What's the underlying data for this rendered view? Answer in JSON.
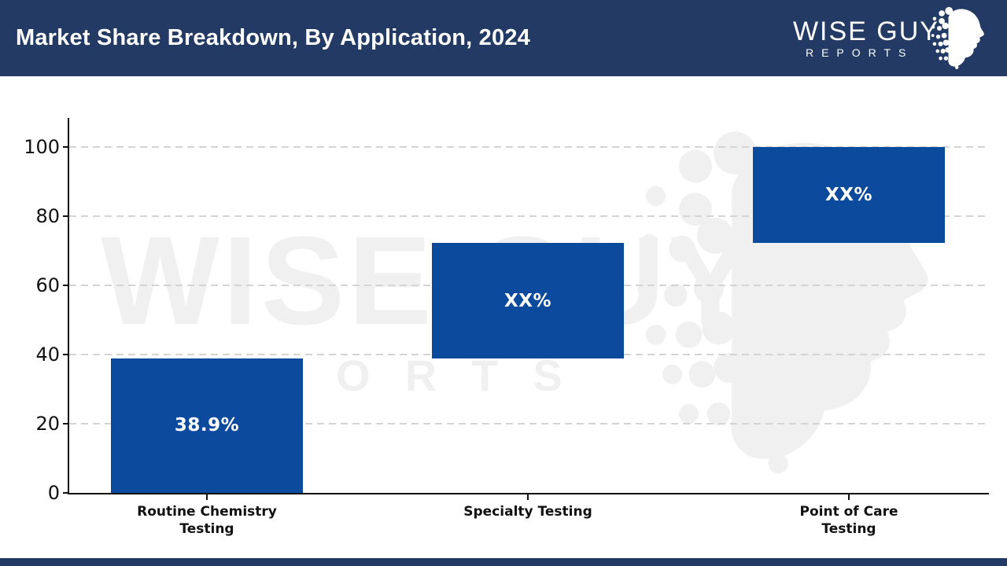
{
  "header": {
    "title": "Market Share Breakdown, By Application, 2024",
    "logo": {
      "line1": "WISE GUY",
      "line2": "REPORTS"
    }
  },
  "watermark": {
    "line1": "WISE GUY",
    "line2": "REPORTS"
  },
  "chart_data": {
    "type": "bar",
    "subtype": "waterfall",
    "title": "Market Share Breakdown, By Application, 2024",
    "categories": [
      [
        "Routine Chemistry",
        "Testing"
      ],
      [
        "Specialty Testing"
      ],
      [
        "Point of Care",
        "Testing"
      ]
    ],
    "bars": [
      {
        "start": 0,
        "end": 38.9,
        "label": "38.9%"
      },
      {
        "start": 38.9,
        "end": 72.2,
        "label": "XX%"
      },
      {
        "start": 72.2,
        "end": 100,
        "label": "XX%"
      }
    ],
    "yticks": [
      0,
      20,
      40,
      60,
      80,
      100
    ],
    "ylim": [
      0,
      100
    ],
    "xlabel": "",
    "ylabel": "",
    "legend": "none",
    "grid": {
      "horizontal": true,
      "style": "dashed"
    }
  },
  "colors": {
    "header_bg": "#223a64",
    "footer_bg": "#223a64",
    "bar": "#0c4a9e",
    "bar_label": "#ffffff",
    "grid": "#d4d4d4",
    "axis": "#111111",
    "watermark": "#f0f0f1"
  }
}
